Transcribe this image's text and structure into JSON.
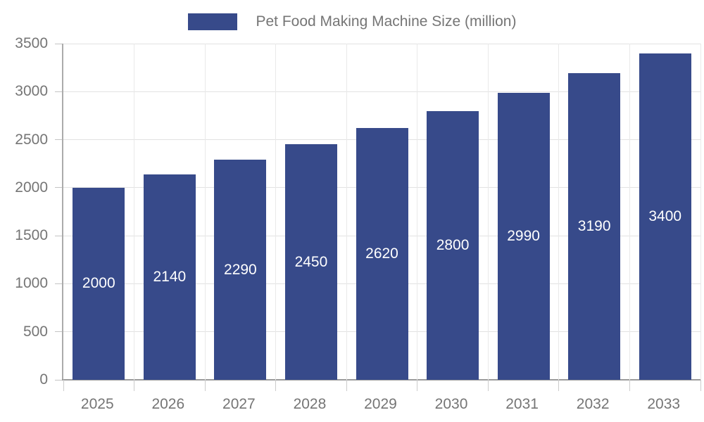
{
  "chart_data": {
    "type": "bar",
    "title": "",
    "legend": "Pet Food Making Machine Size (million)",
    "legend_position": "top-center",
    "categories": [
      "2025",
      "2026",
      "2027",
      "2028",
      "2029",
      "2030",
      "2031",
      "2032",
      "2033"
    ],
    "values": [
      2000,
      2140,
      2290,
      2450,
      2620,
      2800,
      2990,
      3190,
      3400
    ],
    "value_labels": [
      "2000",
      "2140",
      "2290",
      "2450",
      "2620",
      "2800",
      "2990",
      "3190",
      "3400"
    ],
    "xlabel": "",
    "ylabel": "",
    "ylim": [
      0,
      3500
    ],
    "yticks": [
      0,
      500,
      1000,
      1500,
      2000,
      2500,
      3000,
      3500
    ],
    "ytick_labels": [
      "0",
      "500",
      "1000",
      "1500",
      "2000",
      "2500",
      "3000",
      "3500"
    ],
    "grid": true,
    "colors": {
      "bar": "#374a8a",
      "bar_value_text": "#ffffff",
      "axis_text": "#757575",
      "legend_text": "#757575",
      "axis_line": "#9b9b9b",
      "gridline": "#e2e2e2",
      "background": "#ffffff"
    }
  }
}
